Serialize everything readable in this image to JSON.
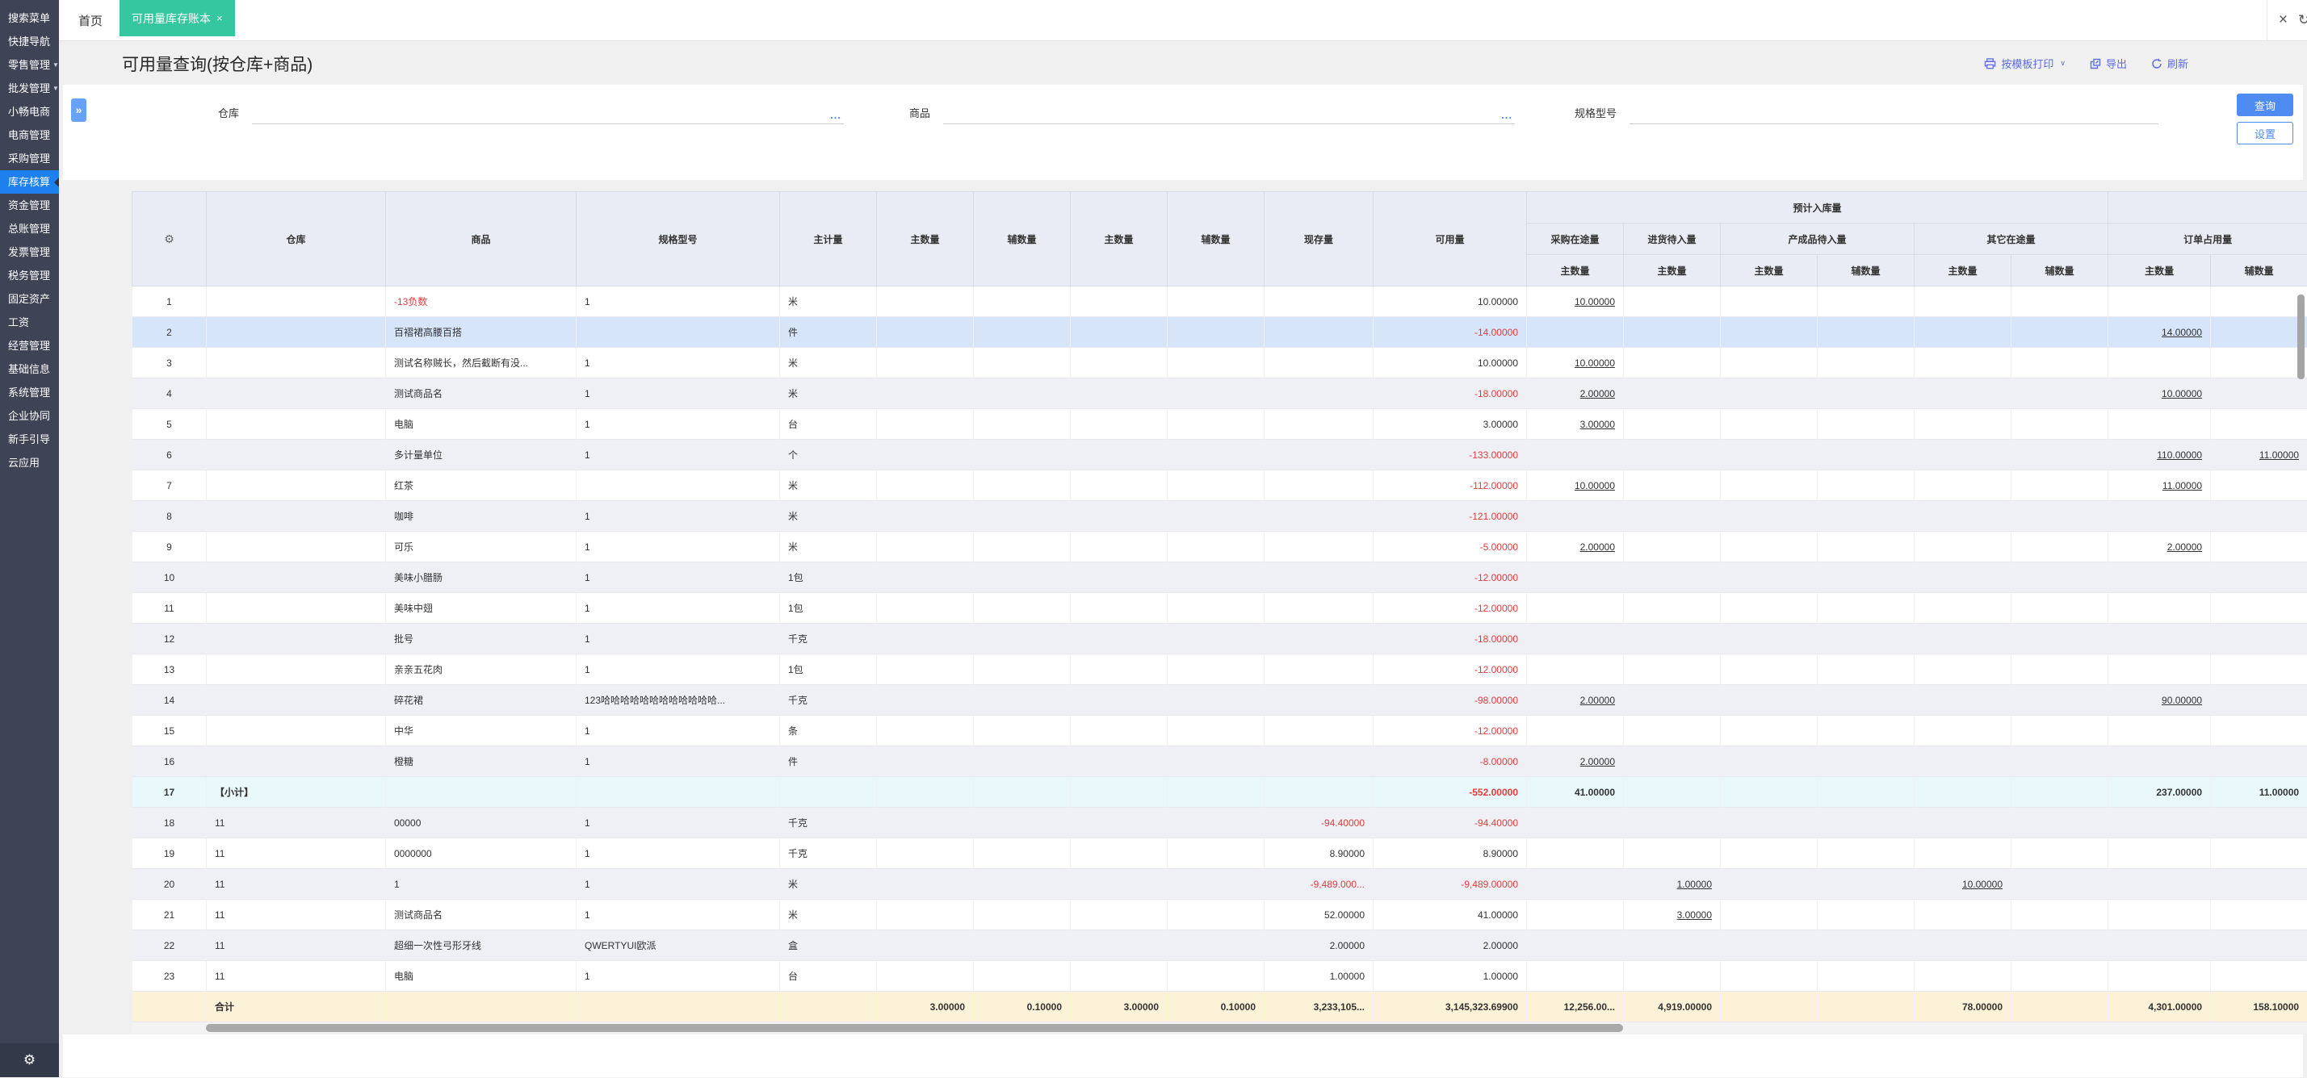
{
  "sidebar": {
    "items": [
      {
        "label": "搜索菜单"
      },
      {
        "label": "快捷导航"
      },
      {
        "label": "零售管理",
        "arrow": true
      },
      {
        "label": "批发管理",
        "arrow": true
      },
      {
        "label": "小畅电商"
      },
      {
        "label": "电商管理"
      },
      {
        "label": "采购管理"
      },
      {
        "label": "库存核算",
        "active": true
      },
      {
        "label": "资金管理"
      },
      {
        "label": "总账管理"
      },
      {
        "label": "发票管理"
      },
      {
        "label": "税务管理"
      },
      {
        "label": "固定资产"
      },
      {
        "label": "工资"
      },
      {
        "label": "经营管理"
      },
      {
        "label": "基础信息"
      },
      {
        "label": "系统管理"
      },
      {
        "label": "企业协同"
      },
      {
        "label": "新手引导"
      },
      {
        "label": "云应用"
      }
    ],
    "footer_gear": "⚙"
  },
  "tabs": {
    "home": "首页",
    "active": "可用量库存账本",
    "close": "×",
    "bar_close": "×",
    "bar_restore": "↻"
  },
  "page": {
    "title": "可用量查询(按仓库+商品)"
  },
  "toolbar": {
    "print": "按模板打印",
    "print_caret": "∨",
    "export": "导出",
    "refresh": "刷新"
  },
  "filters": {
    "collapse": "»",
    "warehouse_label": "仓库",
    "product_label": "商品",
    "spec_label": "规格型号",
    "ellipsis": "...",
    "query_btn": "查询",
    "settings_btn": "设置"
  },
  "table": {
    "header": {
      "warehouse": "仓库",
      "product": "商品",
      "spec": "规格型号",
      "main_unit": "主计量",
      "main_qty": "主数量",
      "aux_qty": "辅数量",
      "on_hand": "现存量",
      "available": "可用量",
      "expected_in_group": "预计入库量",
      "purchase_transit": "采购在途量",
      "incoming_pending": "进货待入量",
      "finished_pending": "产成品待入量",
      "other_transit": "其它在途量",
      "order_occupied": "订单占用量"
    },
    "rows": [
      {
        "cells": [
          "1",
          "",
          "-13负数",
          "1",
          "米",
          "",
          "",
          "",
          "",
          "",
          "10.00000",
          "10.00000",
          "",
          "",
          "",
          "",
          "",
          "",
          ""
        ],
        "u": [
          11
        ]
      },
      {
        "cells": [
          "2",
          "",
          "百褶裙高腰百搭",
          "",
          "件",
          "",
          "",
          "",
          "",
          "",
          "-14.00000",
          "",
          "",
          "",
          "",
          "",
          "",
          "14.00000",
          ""
        ],
        "u": [
          17
        ],
        "type": "selected"
      },
      {
        "cells": [
          "3",
          "",
          "测试名称贼长，然后截断有没...",
          "1",
          "米",
          "",
          "",
          "",
          "",
          "",
          "10.00000",
          "10.00000",
          "",
          "",
          "",
          "",
          "",
          "",
          ""
        ],
        "u": [
          11
        ]
      },
      {
        "cells": [
          "4",
          "",
          "测试商品名",
          "1",
          "米",
          "",
          "",
          "",
          "",
          "",
          "-18.00000",
          "2.00000",
          "",
          "",
          "",
          "",
          "",
          "10.00000",
          ""
        ],
        "u": [
          11,
          17
        ]
      },
      {
        "cells": [
          "5",
          "",
          "电脑",
          "1",
          "台",
          "",
          "",
          "",
          "",
          "",
          "3.00000",
          "3.00000",
          "",
          "",
          "",
          "",
          "",
          "",
          ""
        ],
        "u": [
          11
        ]
      },
      {
        "cells": [
          "6",
          "",
          "多计量单位",
          "1",
          "个",
          "",
          "",
          "",
          "",
          "",
          "-133.00000",
          "",
          "",
          "",
          "",
          "",
          "",
          "110.00000",
          "11.00000"
        ],
        "u": [
          17,
          18
        ]
      },
      {
        "cells": [
          "7",
          "",
          "红茶",
          "",
          "米",
          "",
          "",
          "",
          "",
          "",
          "-112.00000",
          "10.00000",
          "",
          "",
          "",
          "",
          "",
          "11.00000",
          ""
        ],
        "u": [
          11,
          17
        ]
      },
      {
        "cells": [
          "8",
          "",
          "咖啡",
          "1",
          "米",
          "",
          "",
          "",
          "",
          "",
          "-121.00000",
          "",
          "",
          "",
          "",
          "",
          "",
          "",
          ""
        ],
        "u": []
      },
      {
        "cells": [
          "9",
          "",
          "可乐",
          "1",
          "米",
          "",
          "",
          "",
          "",
          "",
          "-5.00000",
          "2.00000",
          "",
          "",
          "",
          "",
          "",
          "2.00000",
          ""
        ],
        "u": [
          11,
          17
        ]
      },
      {
        "cells": [
          "10",
          "",
          "美味小腊肠",
          "1",
          "1包",
          "",
          "",
          "",
          "",
          "",
          "-12.00000",
          "",
          "",
          "",
          "",
          "",
          "",
          "",
          ""
        ],
        "u": []
      },
      {
        "cells": [
          "11",
          "",
          "美味中翅",
          "1",
          "1包",
          "",
          "",
          "",
          "",
          "",
          "-12.00000",
          "",
          "",
          "",
          "",
          "",
          "",
          "",
          ""
        ],
        "u": []
      },
      {
        "cells": [
          "12",
          "",
          "批号",
          "1",
          "千克",
          "",
          "",
          "",
          "",
          "",
          "-18.00000",
          "",
          "",
          "",
          "",
          "",
          "",
          "",
          ""
        ],
        "u": []
      },
      {
        "cells": [
          "13",
          "",
          "亲亲五花肉",
          "1",
          "1包",
          "",
          "",
          "",
          "",
          "",
          "-12.00000",
          "",
          "",
          "",
          "",
          "",
          "",
          "",
          ""
        ],
        "u": []
      },
      {
        "cells": [
          "14",
          "",
          "碎花裙",
          "123哈哈哈哈哈哈哈哈哈哈哈哈...",
          "千克",
          "",
          "",
          "",
          "",
          "",
          "-98.00000",
          "2.00000",
          "",
          "",
          "",
          "",
          "",
          "90.00000",
          ""
        ],
        "u": [
          11,
          17
        ]
      },
      {
        "cells": [
          "15",
          "",
          "中华",
          "1",
          "条",
          "",
          "",
          "",
          "",
          "",
          "-12.00000",
          "",
          "",
          "",
          "",
          "",
          "",
          "",
          ""
        ],
        "u": []
      },
      {
        "cells": [
          "16",
          "",
          "橙糖",
          "1",
          "件",
          "",
          "",
          "",
          "",
          "",
          "-8.00000",
          "2.00000",
          "",
          "",
          "",
          "",
          "",
          "",
          ""
        ],
        "u": [
          11
        ]
      },
      {
        "cells": [
          "17",
          "【小计】",
          "",
          "",
          "",
          "",
          "",
          "",
          "",
          "",
          "-552.00000",
          "41.00000",
          "",
          "",
          "",
          "",
          "",
          "237.00000",
          "11.00000"
        ],
        "u": [],
        "type": "subtotal"
      },
      {
        "cells": [
          "18",
          "11",
          "00000",
          "1",
          "千克",
          "",
          "",
          "",
          "",
          "-94.40000",
          "-94.40000",
          "",
          "",
          "",
          "",
          "",
          "",
          "",
          ""
        ],
        "u": []
      },
      {
        "cells": [
          "19",
          "11",
          "0000000",
          "1",
          "千克",
          "",
          "",
          "",
          "",
          "8.90000",
          "8.90000",
          "",
          "",
          "",
          "",
          "",
          "",
          "",
          ""
        ],
        "u": []
      },
      {
        "cells": [
          "20",
          "11",
          "1",
          "1",
          "米",
          "",
          "",
          "",
          "",
          "-9,489.000...",
          "-9,489.00000",
          "",
          "1.00000",
          "",
          "",
          "10.00000",
          "",
          "",
          ""
        ],
        "u": [
          12,
          15
        ]
      },
      {
        "cells": [
          "21",
          "11",
          "测试商品名",
          "1",
          "米",
          "",
          "",
          "",
          "",
          "52.00000",
          "41.00000",
          "",
          "3.00000",
          "",
          "",
          "",
          "",
          "",
          ""
        ],
        "u": [
          12
        ]
      },
      {
        "cells": [
          "22",
          "11",
          "超细一次性弓形牙线",
          "QWERTYUI欧派",
          "盒",
          "",
          "",
          "",
          "",
          "2.00000",
          "2.00000",
          "",
          "",
          "",
          "",
          "",
          "",
          "",
          ""
        ],
        "u": []
      },
      {
        "cells": [
          "23",
          "11",
          "电脑",
          "1",
          "台",
          "",
          "",
          "",
          "",
          "1.00000",
          "1.00000",
          "",
          "",
          "",
          "",
          "",
          "",
          "",
          ""
        ],
        "u": []
      },
      {
        "cells": [
          "",
          "合计",
          "",
          "",
          "",
          "3.00000",
          "0.10000",
          "3.00000",
          "0.10000",
          "3,233,105...",
          "3,145,323.69900",
          "12,256.00...",
          "4,919.00000",
          "",
          "",
          "78.00000",
          "",
          "4,301.00000",
          "158.10000"
        ],
        "u": [],
        "type": "total"
      }
    ]
  },
  "colors": {
    "sidebar_bg": "#3e4355",
    "sidebar_active": "#1e80ee",
    "tab_green": "#35c7a0",
    "toolbar_link": "#5a6ae0",
    "primary_button": "#4e8cf2",
    "negative_red": "#e23b3b",
    "selected_row": "#d6e5fa",
    "subtotal_row": "#e9f9fb",
    "total_row": "#fcf2d8",
    "header_bg": "#e9ecf4"
  }
}
